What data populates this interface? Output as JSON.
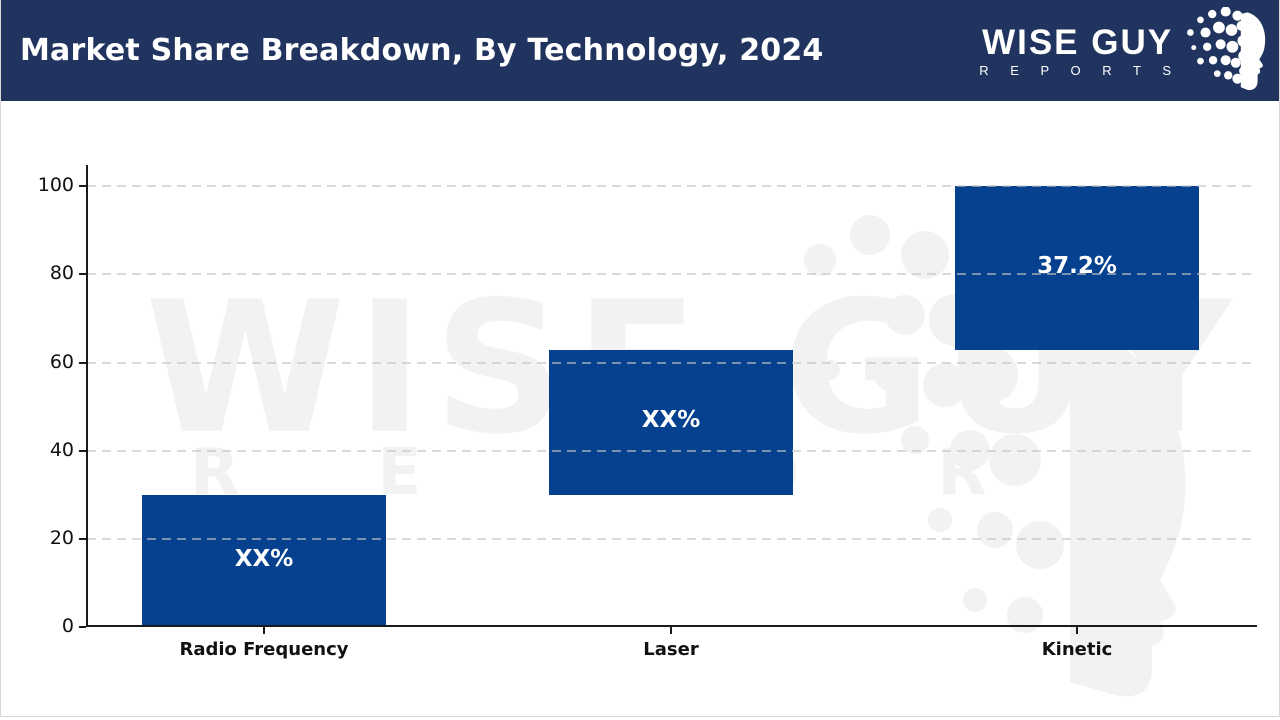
{
  "header": {
    "title": "Market Share Breakdown, By Technology, 2024",
    "brand_line1": "WISE GUY",
    "brand_line2": "R E P O R T S",
    "bg_color": "#20345f"
  },
  "watermark": {
    "line1": "WISE GUY",
    "line2": "R E P O R T S"
  },
  "chart_data": {
    "type": "bar",
    "variant": "stepped-waterfall",
    "title": "Market Share Breakdown, By Technology, 2024",
    "categories": [
      "Radio Frequency",
      "Laser",
      "Kinetic"
    ],
    "segments": [
      {
        "category": "Radio Frequency",
        "from": 0,
        "to": 30,
        "label": "XX%"
      },
      {
        "category": "Laser",
        "from": 30,
        "to": 62.8,
        "label": "XX%"
      },
      {
        "category": "Kinetic",
        "from": 62.8,
        "to": 100,
        "label": "37.2%"
      }
    ],
    "yticks": [
      0,
      20,
      40,
      60,
      80,
      100
    ],
    "ylim": [
      0,
      105
    ],
    "xlabel": "",
    "ylabel": "",
    "legend": "none",
    "grid": {
      "axis": "y",
      "style": "dashed",
      "drawn_over_bars": true
    },
    "colors": {
      "bar": "#05418f",
      "bar_label": "#ffffff",
      "axis": "#1a1a1a",
      "gridline": "#e6e6e6",
      "header_bg": "#20345f",
      "watermark": "#f2f2f2"
    }
  }
}
